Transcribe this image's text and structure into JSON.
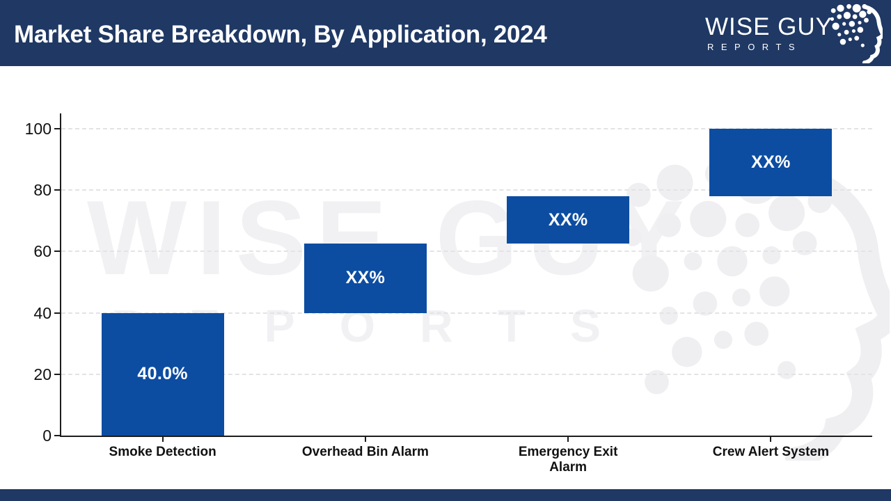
{
  "header": {
    "title": "Market Share Breakdown, By Application, 2024",
    "logo": {
      "brand_line1": "WISE GUY",
      "brand_line2": "REPORTS"
    }
  },
  "watermark": {
    "line1": "WISE GUY",
    "line2": "REPORTS"
  },
  "footer": {
    "label": ""
  },
  "colors": {
    "header_bg": "#1f3864",
    "footer_bg": "#1f3864",
    "bar": "#0c4da2",
    "bar_label": "#ffffff",
    "grid": "#e3e3e6",
    "axis": "#1c1c1c",
    "watermark": "#f1f1f4"
  },
  "chart_data": {
    "type": "bar",
    "subtype": "waterfall",
    "title": "Market Share Breakdown, By Application, 2024",
    "categories": [
      "Smoke Detection",
      "Overhead Bin Alarm",
      "Emergency Exit\nAlarm",
      "Crew Alert System"
    ],
    "series": [
      {
        "name": "Market share (%)",
        "segments": [
          {
            "category": "Smoke Detection",
            "start": 0,
            "end": 40,
            "value": 40,
            "label": "40.0%"
          },
          {
            "category": "Overhead Bin Alarm",
            "start": 40,
            "end": 62.5,
            "value": 22.5,
            "label": "XX%"
          },
          {
            "category": "Emergency Exit Alarm",
            "start": 62.5,
            "end": 78,
            "value": 15.5,
            "label": "XX%"
          },
          {
            "category": "Crew Alert System",
            "start": 78,
            "end": 100,
            "value": 22,
            "label": "XX%"
          }
        ]
      }
    ],
    "xlabel": "",
    "ylabel": "",
    "ylim": [
      0,
      105
    ],
    "yticks": [
      0,
      20,
      40,
      60,
      80,
      100
    ],
    "grid": "horizontal-dashed",
    "legend": "none",
    "bar_color": "#0c4da2"
  }
}
